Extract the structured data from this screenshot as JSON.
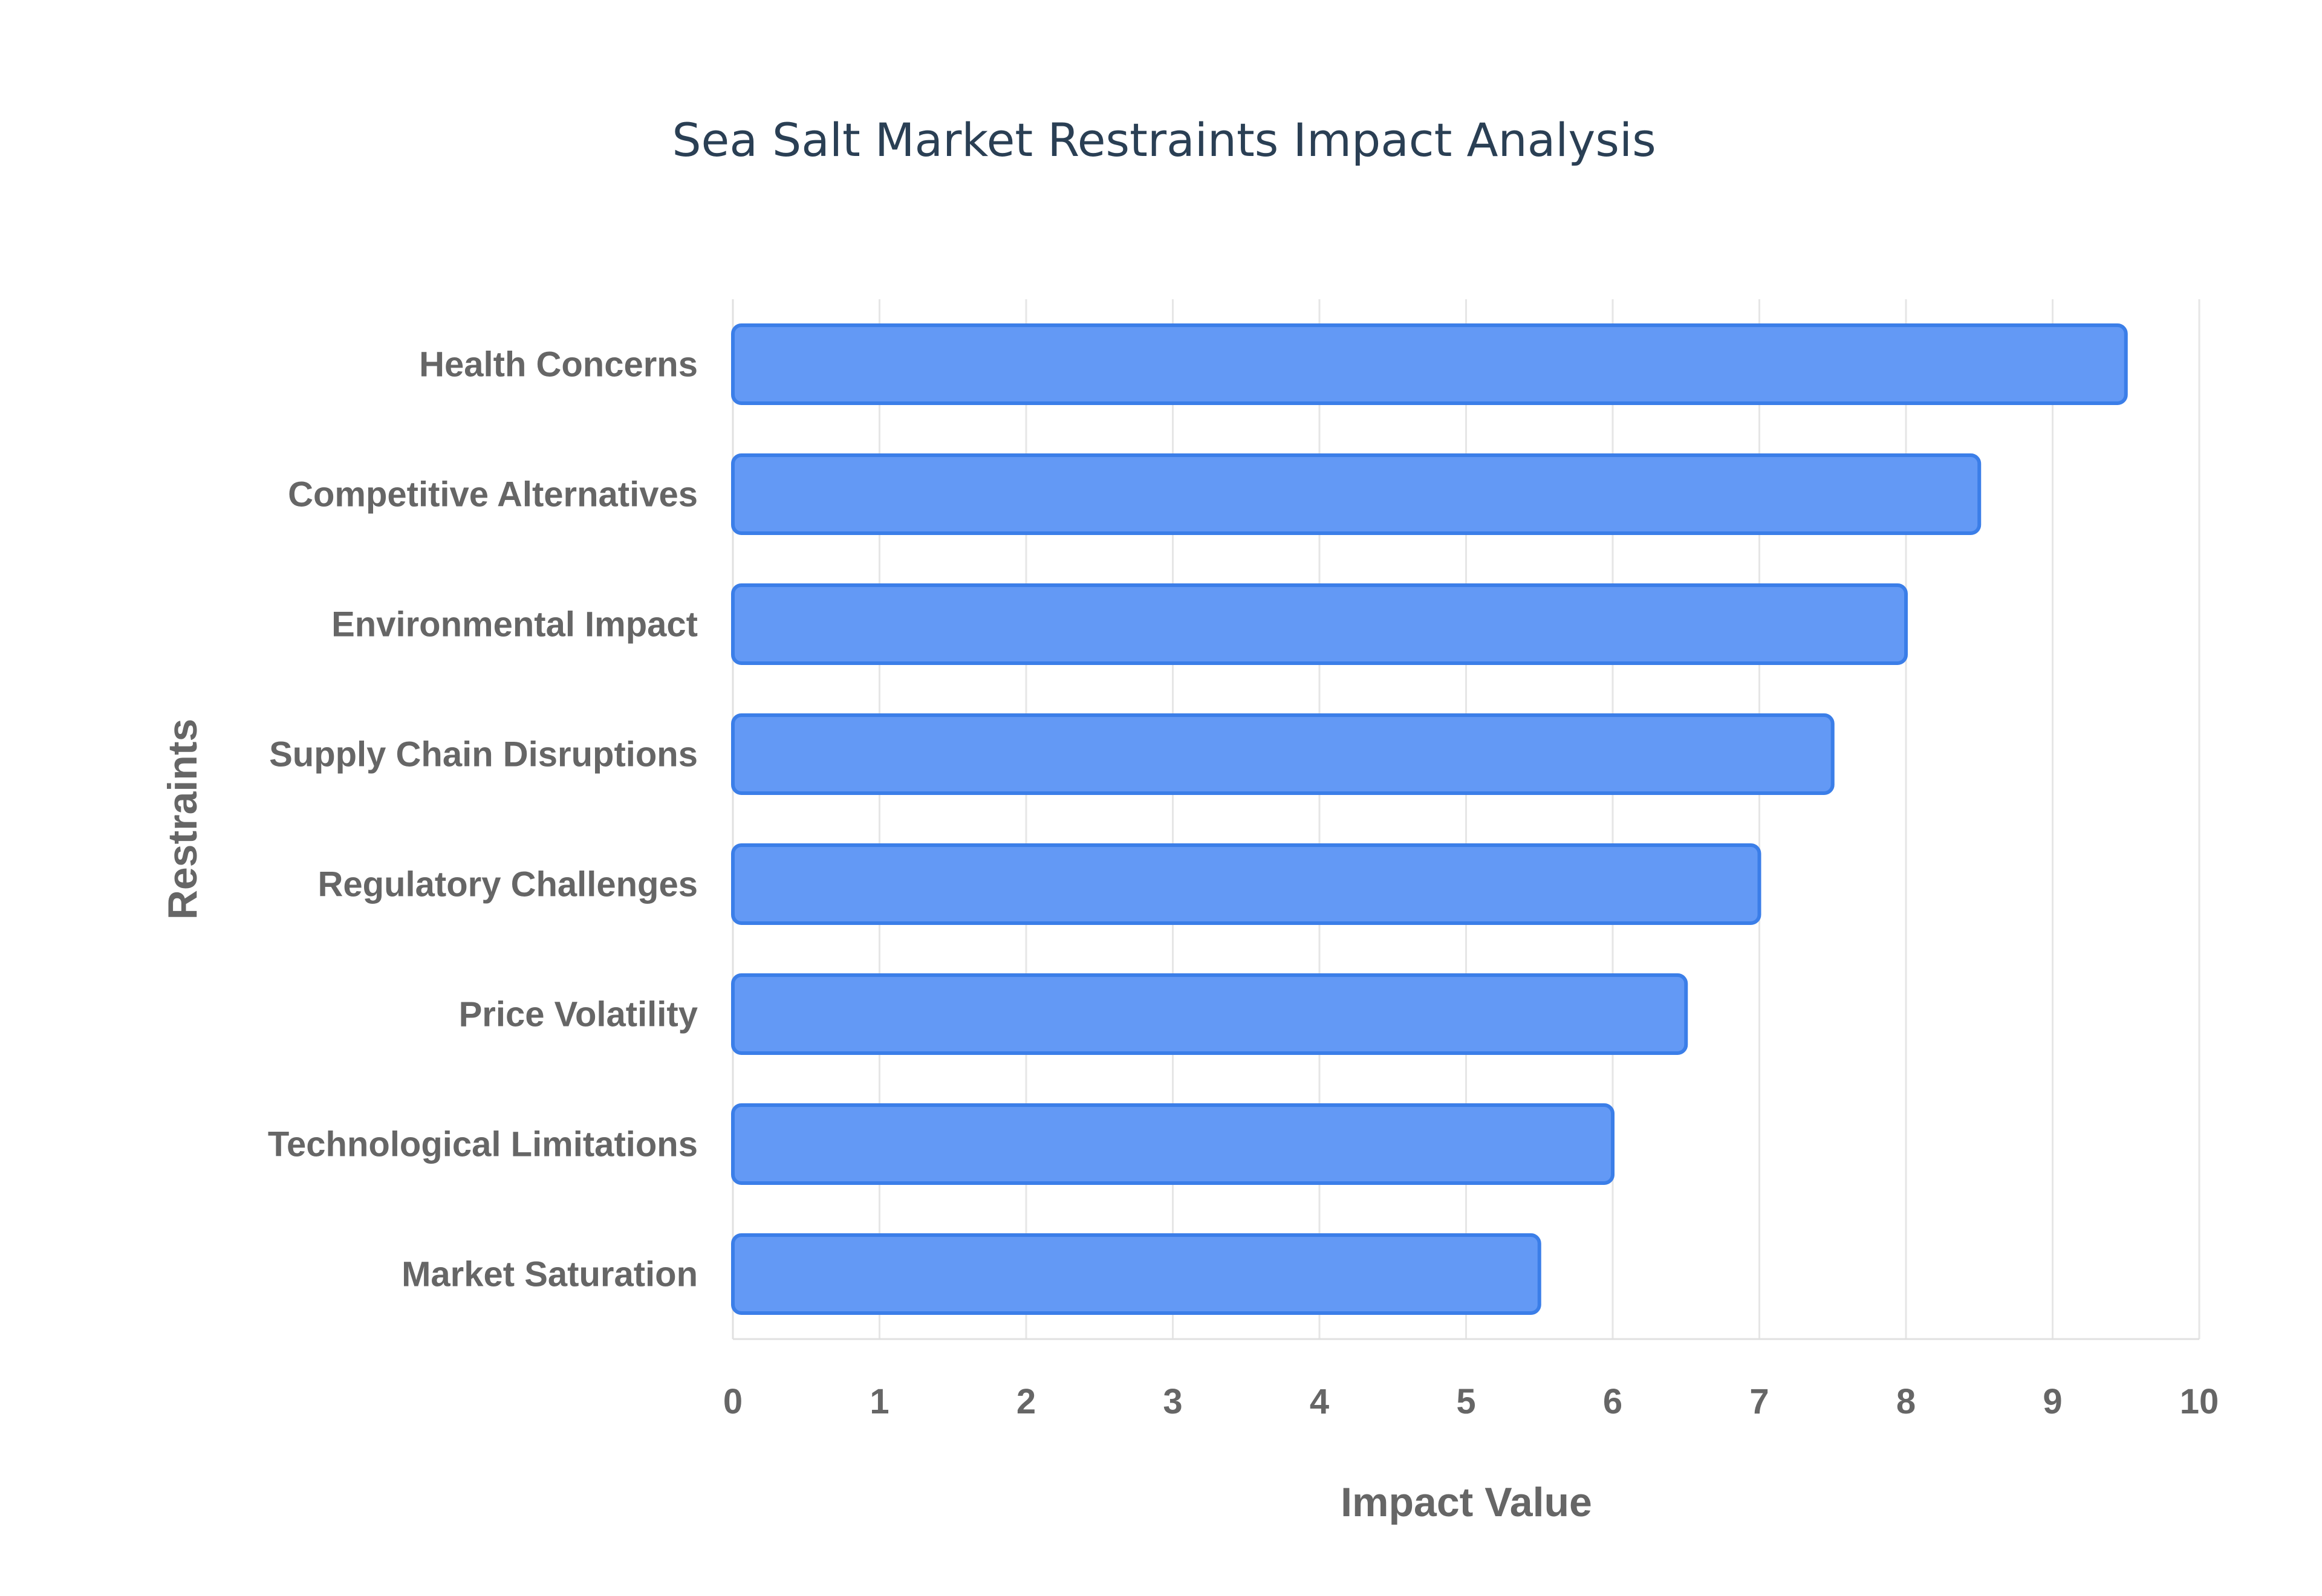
{
  "chart_data": {
    "type": "bar",
    "orientation": "horizontal",
    "title": "Sea Salt Market Restraints Impact Analysis",
    "xlabel": "Impact Value",
    "ylabel": "Restraints",
    "categories": [
      "Health Concerns",
      "Competitive Alternatives",
      "Environmental Impact",
      "Supply Chain Disruptions",
      "Regulatory Challenges",
      "Price Volatility",
      "Technological Limitations",
      "Market Saturation"
    ],
    "values": [
      9.5,
      8.5,
      8.0,
      7.5,
      7.0,
      6.5,
      6.0,
      5.5
    ],
    "xlim": [
      0,
      10
    ],
    "xticks": [
      "0",
      "1",
      "2",
      "3",
      "4",
      "5",
      "6",
      "7",
      "8",
      "9",
      "10"
    ],
    "grid": true,
    "legend": "none",
    "colors": {
      "bar_fill": "#6399f5",
      "bar_stroke": "#3b7ee8",
      "title": "#2a3f54",
      "label": "#666666"
    }
  }
}
